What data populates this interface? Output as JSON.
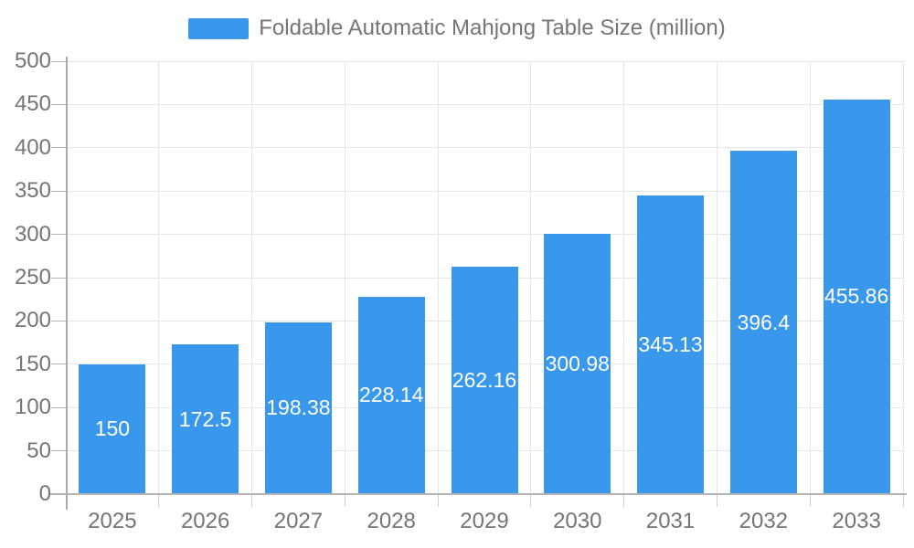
{
  "legend": {
    "label": "Foldable Automatic Mahjong Table Size (million)"
  },
  "chart_data": {
    "type": "bar",
    "title": "Foldable Automatic Mahjong Table Size (million)",
    "xlabel": "",
    "ylabel": "",
    "categories": [
      "2025",
      "2026",
      "2027",
      "2028",
      "2029",
      "2030",
      "2031",
      "2032",
      "2033"
    ],
    "values": [
      150,
      172.5,
      198.38,
      228.14,
      262.16,
      300.98,
      345.13,
      396.4,
      455.86
    ],
    "value_labels": [
      "150",
      "172.5",
      "198.38",
      "228.14",
      "262.16",
      "300.98",
      "345.13",
      "396.4",
      "455.86"
    ],
    "y_ticks": [
      0,
      50,
      100,
      150,
      200,
      250,
      300,
      350,
      400,
      450,
      500
    ],
    "ylim": [
      0,
      500
    ],
    "grid": true,
    "legend_position": "top-center",
    "colors": {
      "bar": "#3a98ec",
      "grid": "#e6e6e6",
      "axis": "#a9a9a9",
      "tick": "#b3b3b3",
      "text": "#757575",
      "value_text": "#ffffff",
      "background": "#ffffff"
    }
  }
}
